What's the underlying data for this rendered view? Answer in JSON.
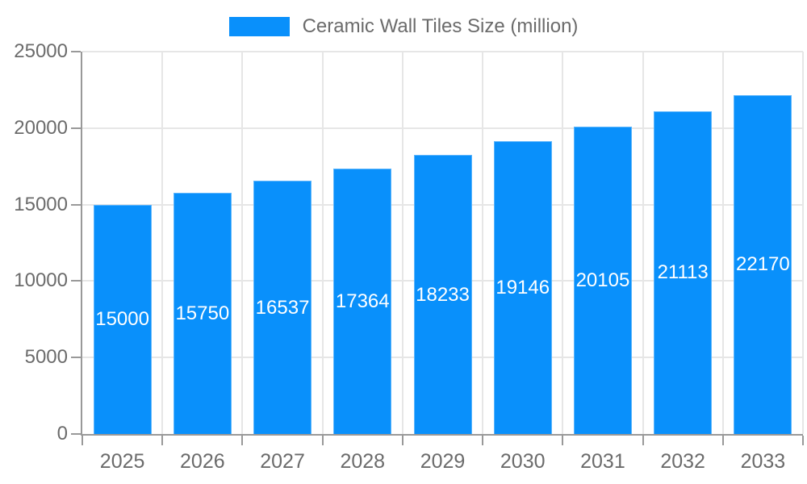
{
  "chart_data": {
    "type": "bar",
    "title": "",
    "legend": {
      "label": "Ceramic Wall Tiles Size (million)",
      "position": "top"
    },
    "categories": [
      "2025",
      "2026",
      "2027",
      "2028",
      "2029",
      "2030",
      "2031",
      "2032",
      "2033"
    ],
    "values": [
      15000,
      15750,
      16537,
      17364,
      18233,
      19146,
      20105,
      21113,
      22170
    ],
    "bar_labels": [
      "15000",
      "15750",
      "16537",
      "17364",
      "18233",
      "19146",
      "20105",
      "21113",
      "22170"
    ],
    "xlabel": "",
    "ylabel": "",
    "ylim": [
      0,
      25000
    ],
    "ytick_step": 5000,
    "ytick_labels": [
      "0",
      "5000",
      "10000",
      "15000",
      "20000",
      "25000"
    ],
    "grid": "on",
    "legend_position": "top-center",
    "colors": {
      "bar": "#0990fb",
      "bar_label": "#ffffff",
      "grid": "#e6e6e6",
      "axis": "#999999",
      "text": "#6b6b6b",
      "background": "#ffffff"
    }
  }
}
